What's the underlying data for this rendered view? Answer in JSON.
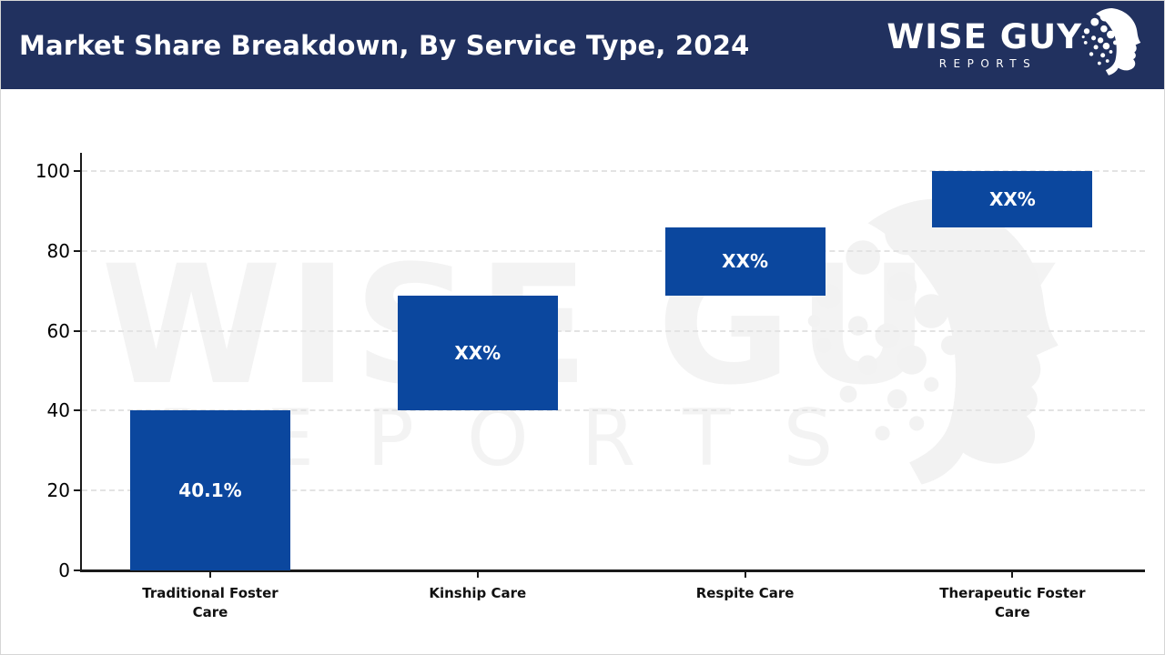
{
  "header": {
    "title": "Market Share Breakdown, By Service Type, 2024",
    "logo": {
      "wordmark": "WISE GUY",
      "subtext": "REPORTS"
    },
    "bg_color": "#21315f"
  },
  "watermark": {
    "line1": "WISE GUY",
    "line2": "REPORTS"
  },
  "chart_data": {
    "type": "bar",
    "subtype": "waterfall",
    "title": "Market Share Breakdown, By Service Type, 2024",
    "categories": [
      "Traditional Foster Care",
      "Kinship Care",
      "Respite Care",
      "Therapeutic Foster Care"
    ],
    "category_display": [
      "Traditional Foster\nCare",
      "Kinship Care",
      "Respite Care",
      "Therapeutic Foster\nCare"
    ],
    "segments": [
      {
        "category": "Traditional Foster Care",
        "start": 0,
        "end": 40.1,
        "label": "40.1%"
      },
      {
        "category": "Kinship Care",
        "start": 40.1,
        "end": 68.9,
        "label": "XX%"
      },
      {
        "category": "Respite Care",
        "start": 68.9,
        "end": 85.9,
        "label": "XX%"
      },
      {
        "category": "Therapeutic Foster Care",
        "start": 85.9,
        "end": 100,
        "label": "XX%"
      }
    ],
    "yticks": [
      0,
      20,
      40,
      60,
      80,
      100
    ],
    "ylim": [
      0,
      104.5
    ],
    "grid": "horizontal-dashed",
    "legend": null,
    "bar_color": "#0b479e",
    "bar_label_color": "#ffffff",
    "axis_color": "#1a1a1a",
    "gridline_color": "#e3e3e3"
  }
}
